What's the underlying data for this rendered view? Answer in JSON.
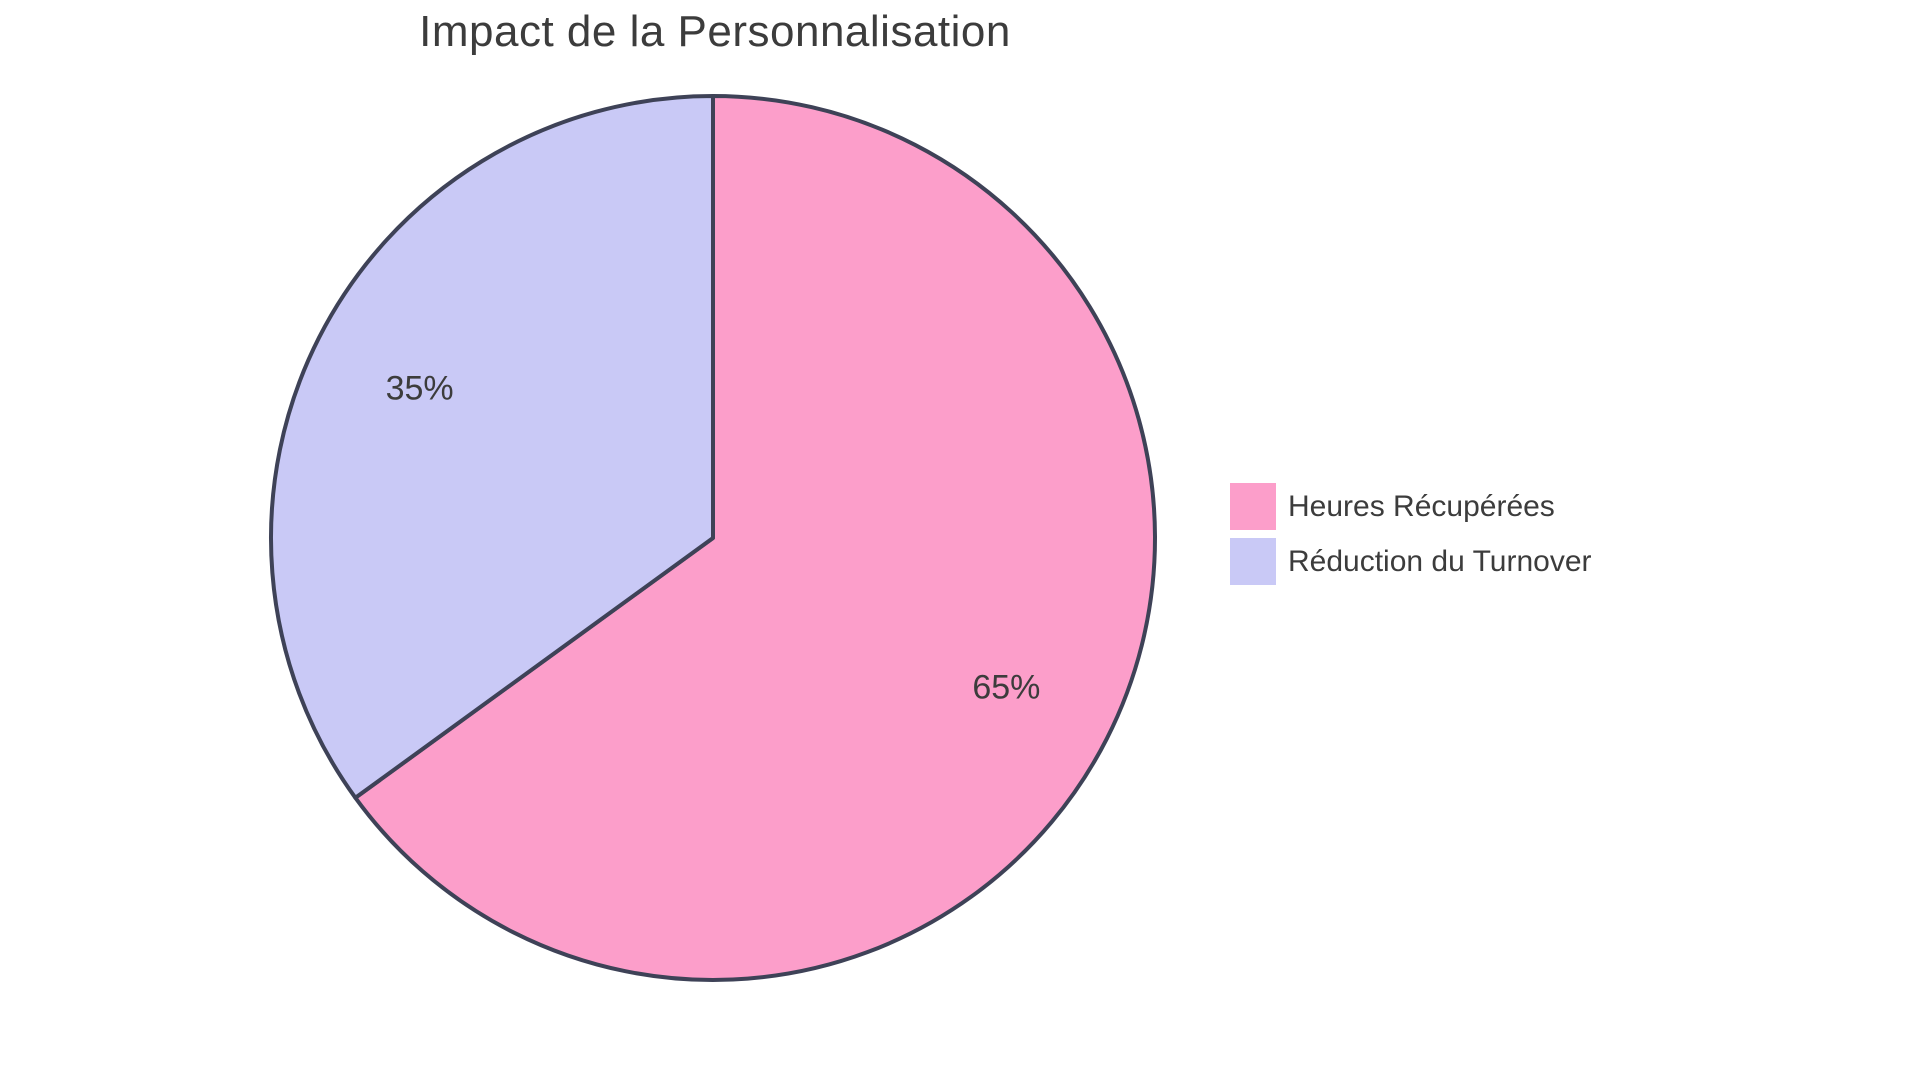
{
  "title": "Impact de la Personnalisation",
  "chart_data": {
    "type": "pie",
    "title": "Impact de la Personnalisation",
    "categories": [
      "Heures Récupérées",
      "Réduction du Turnover"
    ],
    "values": [
      65,
      35
    ],
    "value_labels": [
      "65%",
      "35%"
    ],
    "colors": [
      "#FC9ECA",
      "#C9C9F6"
    ],
    "slice_border_color": "#3E4257",
    "label_color": "#3C3C3C",
    "start_angle_deg": 0,
    "direction": "clockwise",
    "legend_position": "right"
  },
  "legend": {
    "items": [
      {
        "label": "Heures Récupérées",
        "color": "#FC9ECA"
      },
      {
        "label": "Réduction du Turnover",
        "color": "#C9C9F6"
      }
    ]
  }
}
